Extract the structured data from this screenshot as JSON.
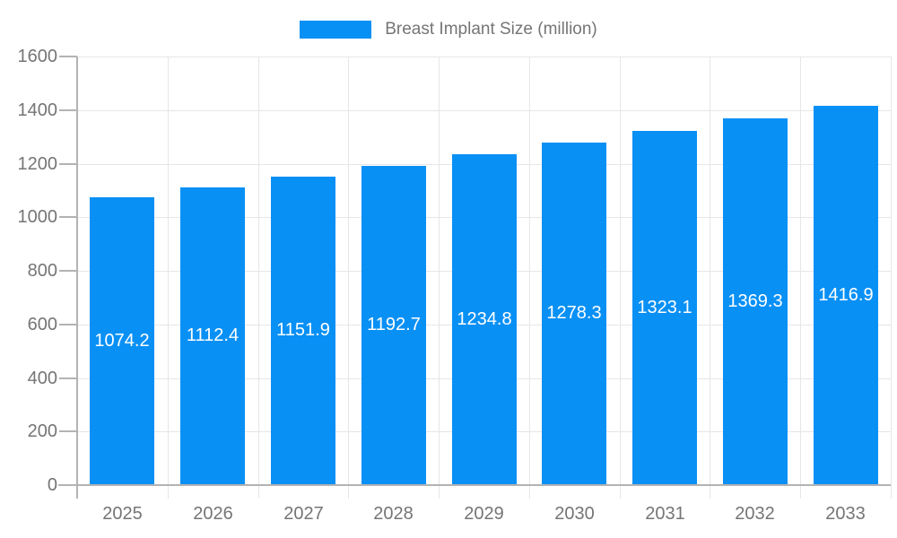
{
  "chart_data": {
    "type": "bar",
    "title": "",
    "categories": [
      "2025",
      "2026",
      "2027",
      "2028",
      "2029",
      "2030",
      "2031",
      "2032",
      "2033"
    ],
    "series": [
      {
        "name": "Breast Implant Size (million)",
        "values": [
          1074.2,
          1112.4,
          1151.9,
          1192.7,
          1234.8,
          1278.3,
          1323.1,
          1369.3,
          1416.9
        ]
      }
    ],
    "bar_value_labels": [
      "1074.2",
      "1112.4",
      "1151.9",
      "1192.7",
      "1234.8",
      "1278.3",
      "1323.1",
      "1369.3",
      "1416.9"
    ],
    "xlabel": "",
    "ylabel": "",
    "ylim": [
      0,
      1600
    ],
    "ytick_step": 200,
    "yticks": [
      0,
      200,
      400,
      600,
      800,
      1000,
      1200,
      1400,
      1600
    ],
    "grid": true,
    "legend_position": "top",
    "value_labels_inside_bars": true,
    "colors": {
      "bar": "#0990f5",
      "bar_label_text": "#ffffff",
      "tick_text": "#757575",
      "legend_text": "#757575",
      "grid_line": "#e6e6e6",
      "axis_line": "#b3b3b3",
      "background": "#ffffff"
    }
  }
}
